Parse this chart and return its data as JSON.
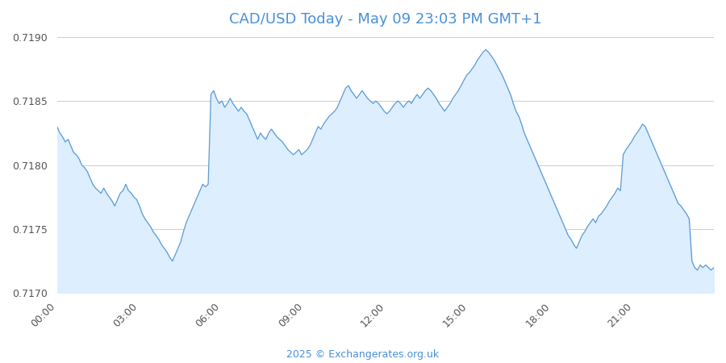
{
  "title": "CAD/USD Today - May 09 23:03 PM GMT+1",
  "title_color": "#4a90d9",
  "background_color": "#ffffff",
  "line_color": "#5b9bd5",
  "fill_color": "#ddeeff",
  "grid_color": "#cccccc",
  "footer_text": "2025 © Exchangerates.org.uk",
  "footer_color": "#4a90d9",
  "ylim_min": 0.717,
  "ylim_max": 0.719,
  "yticks": [
    0.717,
    0.7175,
    0.718,
    0.7185,
    0.719
  ],
  "xtick_labels": [
    "00:00",
    "03:00",
    "06:00",
    "09:00",
    "12:00",
    "15:00",
    "18:00",
    "21:00"
  ],
  "y_values": [
    0.7183,
    0.71825,
    0.71822,
    0.71818,
    0.7182,
    0.71815,
    0.7181,
    0.71808,
    0.71805,
    0.718,
    0.71798,
    0.71795,
    0.7179,
    0.71785,
    0.71782,
    0.7178,
    0.71778,
    0.71782,
    0.71778,
    0.71775,
    0.71772,
    0.71768,
    0.71773,
    0.71778,
    0.7178,
    0.71785,
    0.7178,
    0.71778,
    0.71775,
    0.71773,
    0.71768,
    0.71762,
    0.71758,
    0.71755,
    0.71752,
    0.71748,
    0.71745,
    0.71742,
    0.71738,
    0.71735,
    0.71732,
    0.71728,
    0.71725,
    0.7173,
    0.71735,
    0.7174,
    0.71748,
    0.71755,
    0.7176,
    0.71765,
    0.7177,
    0.71775,
    0.7178,
    0.71785,
    0.71783,
    0.71785,
    0.71855,
    0.71858,
    0.71852,
    0.71848,
    0.7185,
    0.71845,
    0.71848,
    0.71852,
    0.71848,
    0.71845,
    0.71842,
    0.71845,
    0.71842,
    0.7184,
    0.71835,
    0.7183,
    0.71825,
    0.7182,
    0.71825,
    0.71822,
    0.7182,
    0.71825,
    0.71828,
    0.71825,
    0.71822,
    0.7182,
    0.71818,
    0.71815,
    0.71812,
    0.7181,
    0.71808,
    0.7181,
    0.71812,
    0.71808,
    0.7181,
    0.71812,
    0.71815,
    0.7182,
    0.71825,
    0.7183,
    0.71828,
    0.71832,
    0.71835,
    0.71838,
    0.7184,
    0.71842,
    0.71845,
    0.7185,
    0.71855,
    0.7186,
    0.71862,
    0.71858,
    0.71855,
    0.71852,
    0.71855,
    0.71858,
    0.71855,
    0.71852,
    0.7185,
    0.71848,
    0.7185,
    0.71848,
    0.71845,
    0.71842,
    0.7184,
    0.71842,
    0.71845,
    0.71848,
    0.7185,
    0.71848,
    0.71845,
    0.71848,
    0.7185,
    0.71848,
    0.71852,
    0.71855,
    0.71852,
    0.71855,
    0.71858,
    0.7186,
    0.71858,
    0.71855,
    0.71852,
    0.71848,
    0.71845,
    0.71842,
    0.71845,
    0.71848,
    0.71852,
    0.71855,
    0.71858,
    0.71862,
    0.71866,
    0.7187,
    0.71872,
    0.71875,
    0.71878,
    0.71882,
    0.71885,
    0.71888,
    0.7189,
    0.71888,
    0.71885,
    0.71882,
    0.71878,
    0.71874,
    0.7187,
    0.71865,
    0.7186,
    0.71855,
    0.71848,
    0.71842,
    0.71838,
    0.71832,
    0.71825,
    0.7182,
    0.71815,
    0.7181,
    0.71805,
    0.718,
    0.71795,
    0.7179,
    0.71785,
    0.7178,
    0.71775,
    0.7177,
    0.71765,
    0.7176,
    0.71755,
    0.7175,
    0.71745,
    0.71742,
    0.71738,
    0.71735,
    0.7174,
    0.71745,
    0.71748,
    0.71752,
    0.71755,
    0.71758,
    0.71755,
    0.7176,
    0.71762,
    0.71765,
    0.71768,
    0.71772,
    0.71775,
    0.71778,
    0.71782,
    0.7178,
    0.71808,
    0.71812,
    0.71815,
    0.71818,
    0.71822,
    0.71825,
    0.71828,
    0.71832,
    0.7183,
    0.71825,
    0.7182,
    0.71815,
    0.7181,
    0.71805,
    0.718,
    0.71795,
    0.7179,
    0.71785,
    0.7178,
    0.71775,
    0.7177,
    0.71768,
    0.71765,
    0.71762,
    0.71758,
    0.71725,
    0.7172,
    0.71718,
    0.71722,
    0.7172,
    0.71722,
    0.7172,
    0.71718,
    0.7172
  ]
}
